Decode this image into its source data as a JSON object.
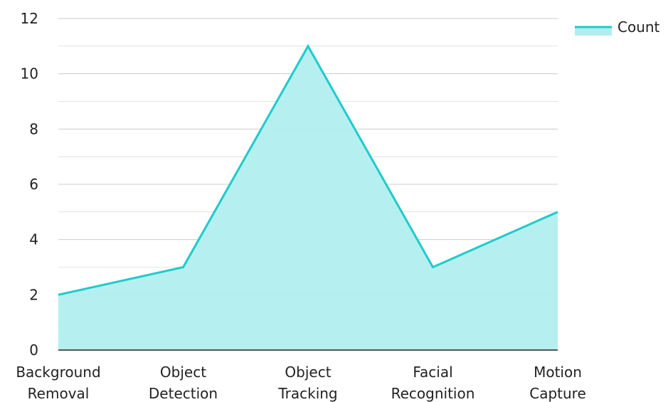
{
  "chart_data": {
    "type": "area",
    "categories": [
      [
        "Background",
        "Removal"
      ],
      [
        "Object",
        "Detection"
      ],
      [
        "Object",
        "Tracking"
      ],
      [
        "Facial",
        "Recognition"
      ],
      [
        "Motion",
        "Capture"
      ]
    ],
    "series": [
      {
        "name": "Count",
        "values": [
          2,
          3,
          11,
          3,
          5
        ]
      }
    ],
    "ylim": [
      0,
      12
    ],
    "yticks": [
      "0",
      "2",
      "4",
      "6",
      "8",
      "10",
      "12"
    ],
    "grid": true,
    "legend_position": "top-right",
    "colors": {
      "line": "#1ecbcb",
      "fill": "#b2eeee",
      "grid": "#cccccc",
      "axis": "#222222"
    }
  }
}
